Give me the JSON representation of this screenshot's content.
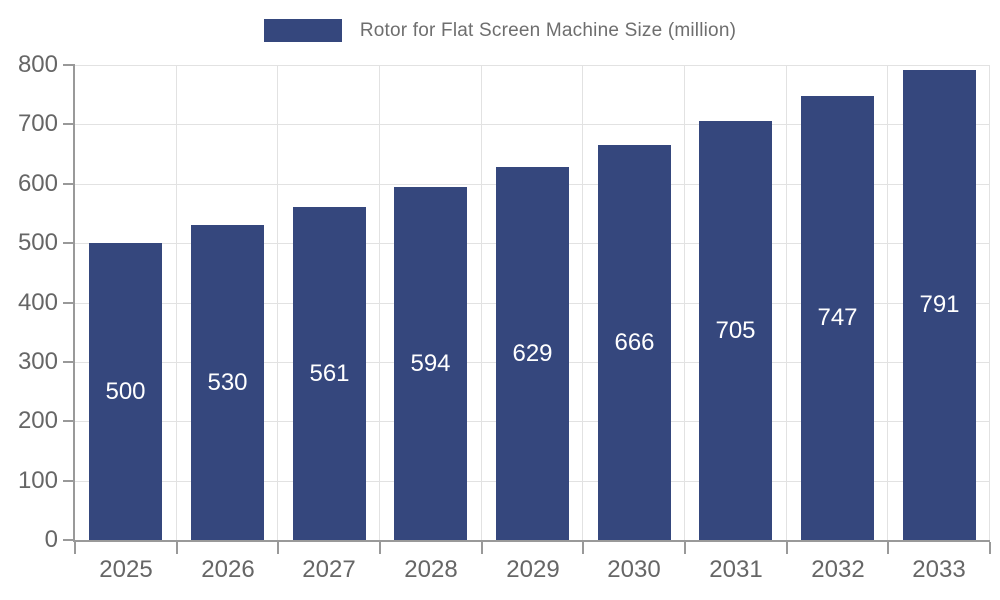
{
  "chart_data": {
    "type": "bar",
    "title": "Rotor for Flat Screen Machine Size (million)",
    "legend": {
      "label": "Rotor for Flat Screen Machine Size (million)",
      "position": "top-center"
    },
    "categories": [
      "2025",
      "2026",
      "2027",
      "2028",
      "2029",
      "2030",
      "2031",
      "2032",
      "2033"
    ],
    "values": [
      500,
      530,
      561,
      594,
      629,
      666,
      705,
      747,
      791
    ],
    "bar_labels_shown": true,
    "xlabel": "",
    "ylabel": "",
    "ylim": [
      0,
      800
    ],
    "ytick_step": 100,
    "yticks": [
      "0",
      "100",
      "200",
      "300",
      "400",
      "500",
      "600",
      "700",
      "800"
    ],
    "grid": true,
    "colors": {
      "bar": "#35477d",
      "bar_label": "#ffffff",
      "axis": "#999999",
      "grid": "#e2e2e2",
      "tick_text": "#666666",
      "legend_text": "#6e6e6e",
      "background": "#ffffff"
    }
  }
}
